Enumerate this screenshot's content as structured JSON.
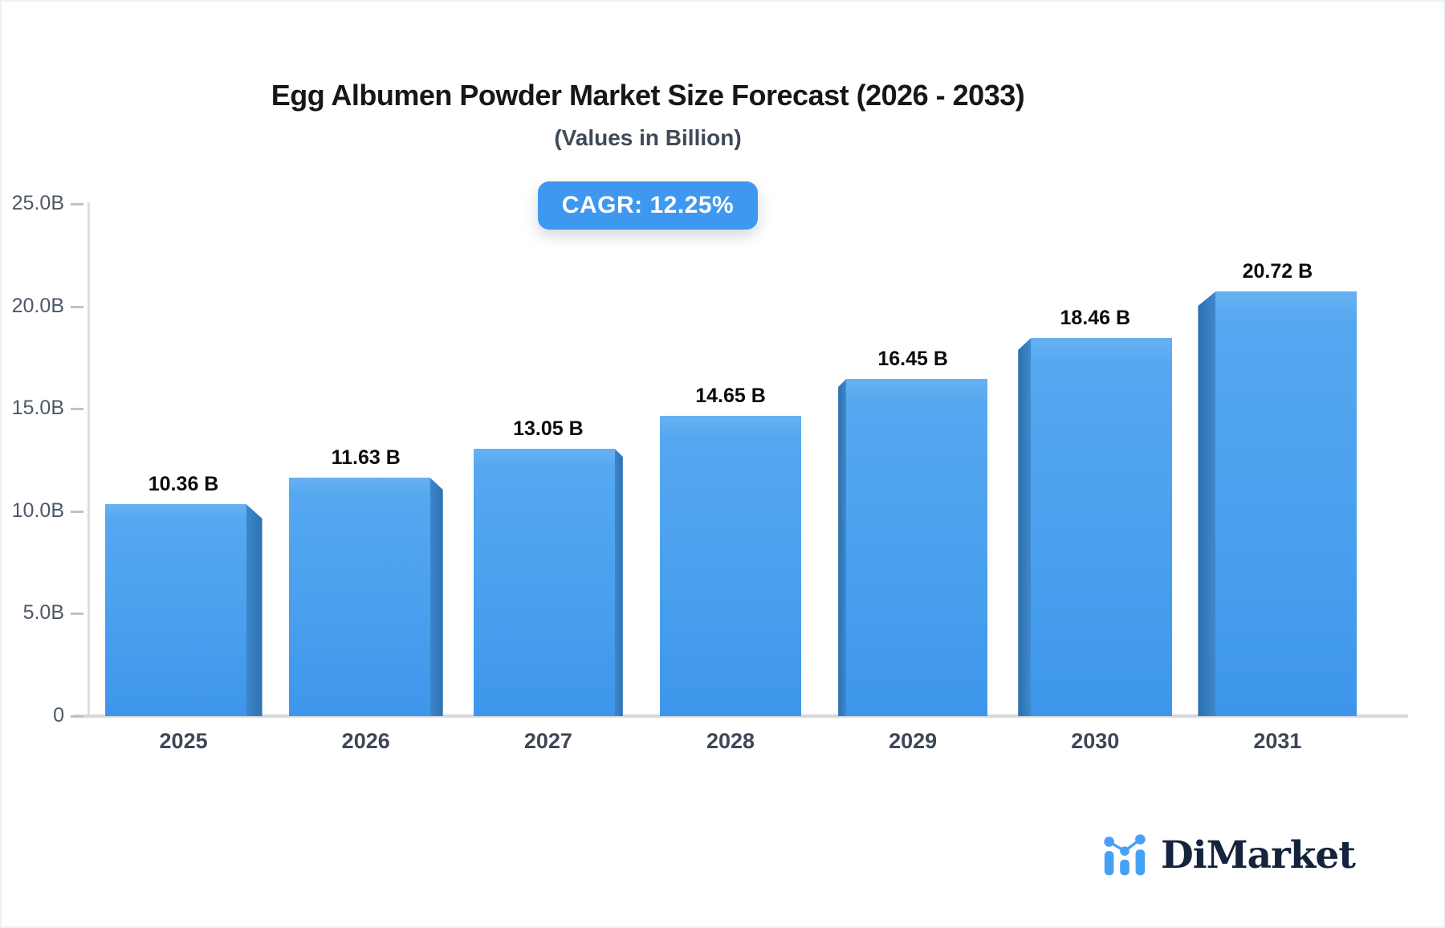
{
  "header": {
    "badge_label": "CAGR: 12.25%"
  },
  "chart_data": {
    "type": "bar",
    "title": "Egg Albumen Powder Market Size Forecast (2026 - 2033)",
    "subtitle": "(Values in Billion)",
    "annotation": "CAGR: 12.25%",
    "categories": [
      "2025",
      "2026",
      "2027",
      "2028",
      "2029",
      "2030",
      "2031"
    ],
    "values": [
      10.36,
      11.63,
      13.05,
      14.65,
      16.45,
      18.46,
      20.72
    ],
    "value_labels": [
      "10.36 B",
      "11.63 B",
      "13.05 B",
      "14.65 B",
      "16.45 B",
      "18.46 B",
      "20.72 B"
    ],
    "xlabel": "",
    "ylabel": "",
    "ylim": [
      0,
      25
    ],
    "yticks": [
      {
        "value": 25,
        "label": "25.0B"
      },
      {
        "value": 20,
        "label": "20.0B"
      },
      {
        "value": 15,
        "label": "15.0B"
      },
      {
        "value": 10,
        "label": "10.0B"
      },
      {
        "value": 5,
        "label": "5.0B"
      },
      {
        "value": 0,
        "label": "0"
      }
    ],
    "grid": false,
    "legend": false,
    "style": "3d-perspective-bars",
    "colors": {
      "bar_face": "#46a0ee",
      "bar_side": "#2f76b7",
      "badge": "#3f98ef",
      "axis_line": "#d7dade",
      "tick_text": "#4d5866",
      "xlabel_text": "#3e4757",
      "value_text": "#0b0c0e",
      "title_text": "#15171b",
      "subtitle_text": "#3f4a58"
    }
  },
  "footer": {
    "logo_text": "DiMarket",
    "logo_icon": "bar-chart-with-dots-icon",
    "logo_text_color": "#16233d",
    "logo_icon_color": "#48a0f6"
  }
}
